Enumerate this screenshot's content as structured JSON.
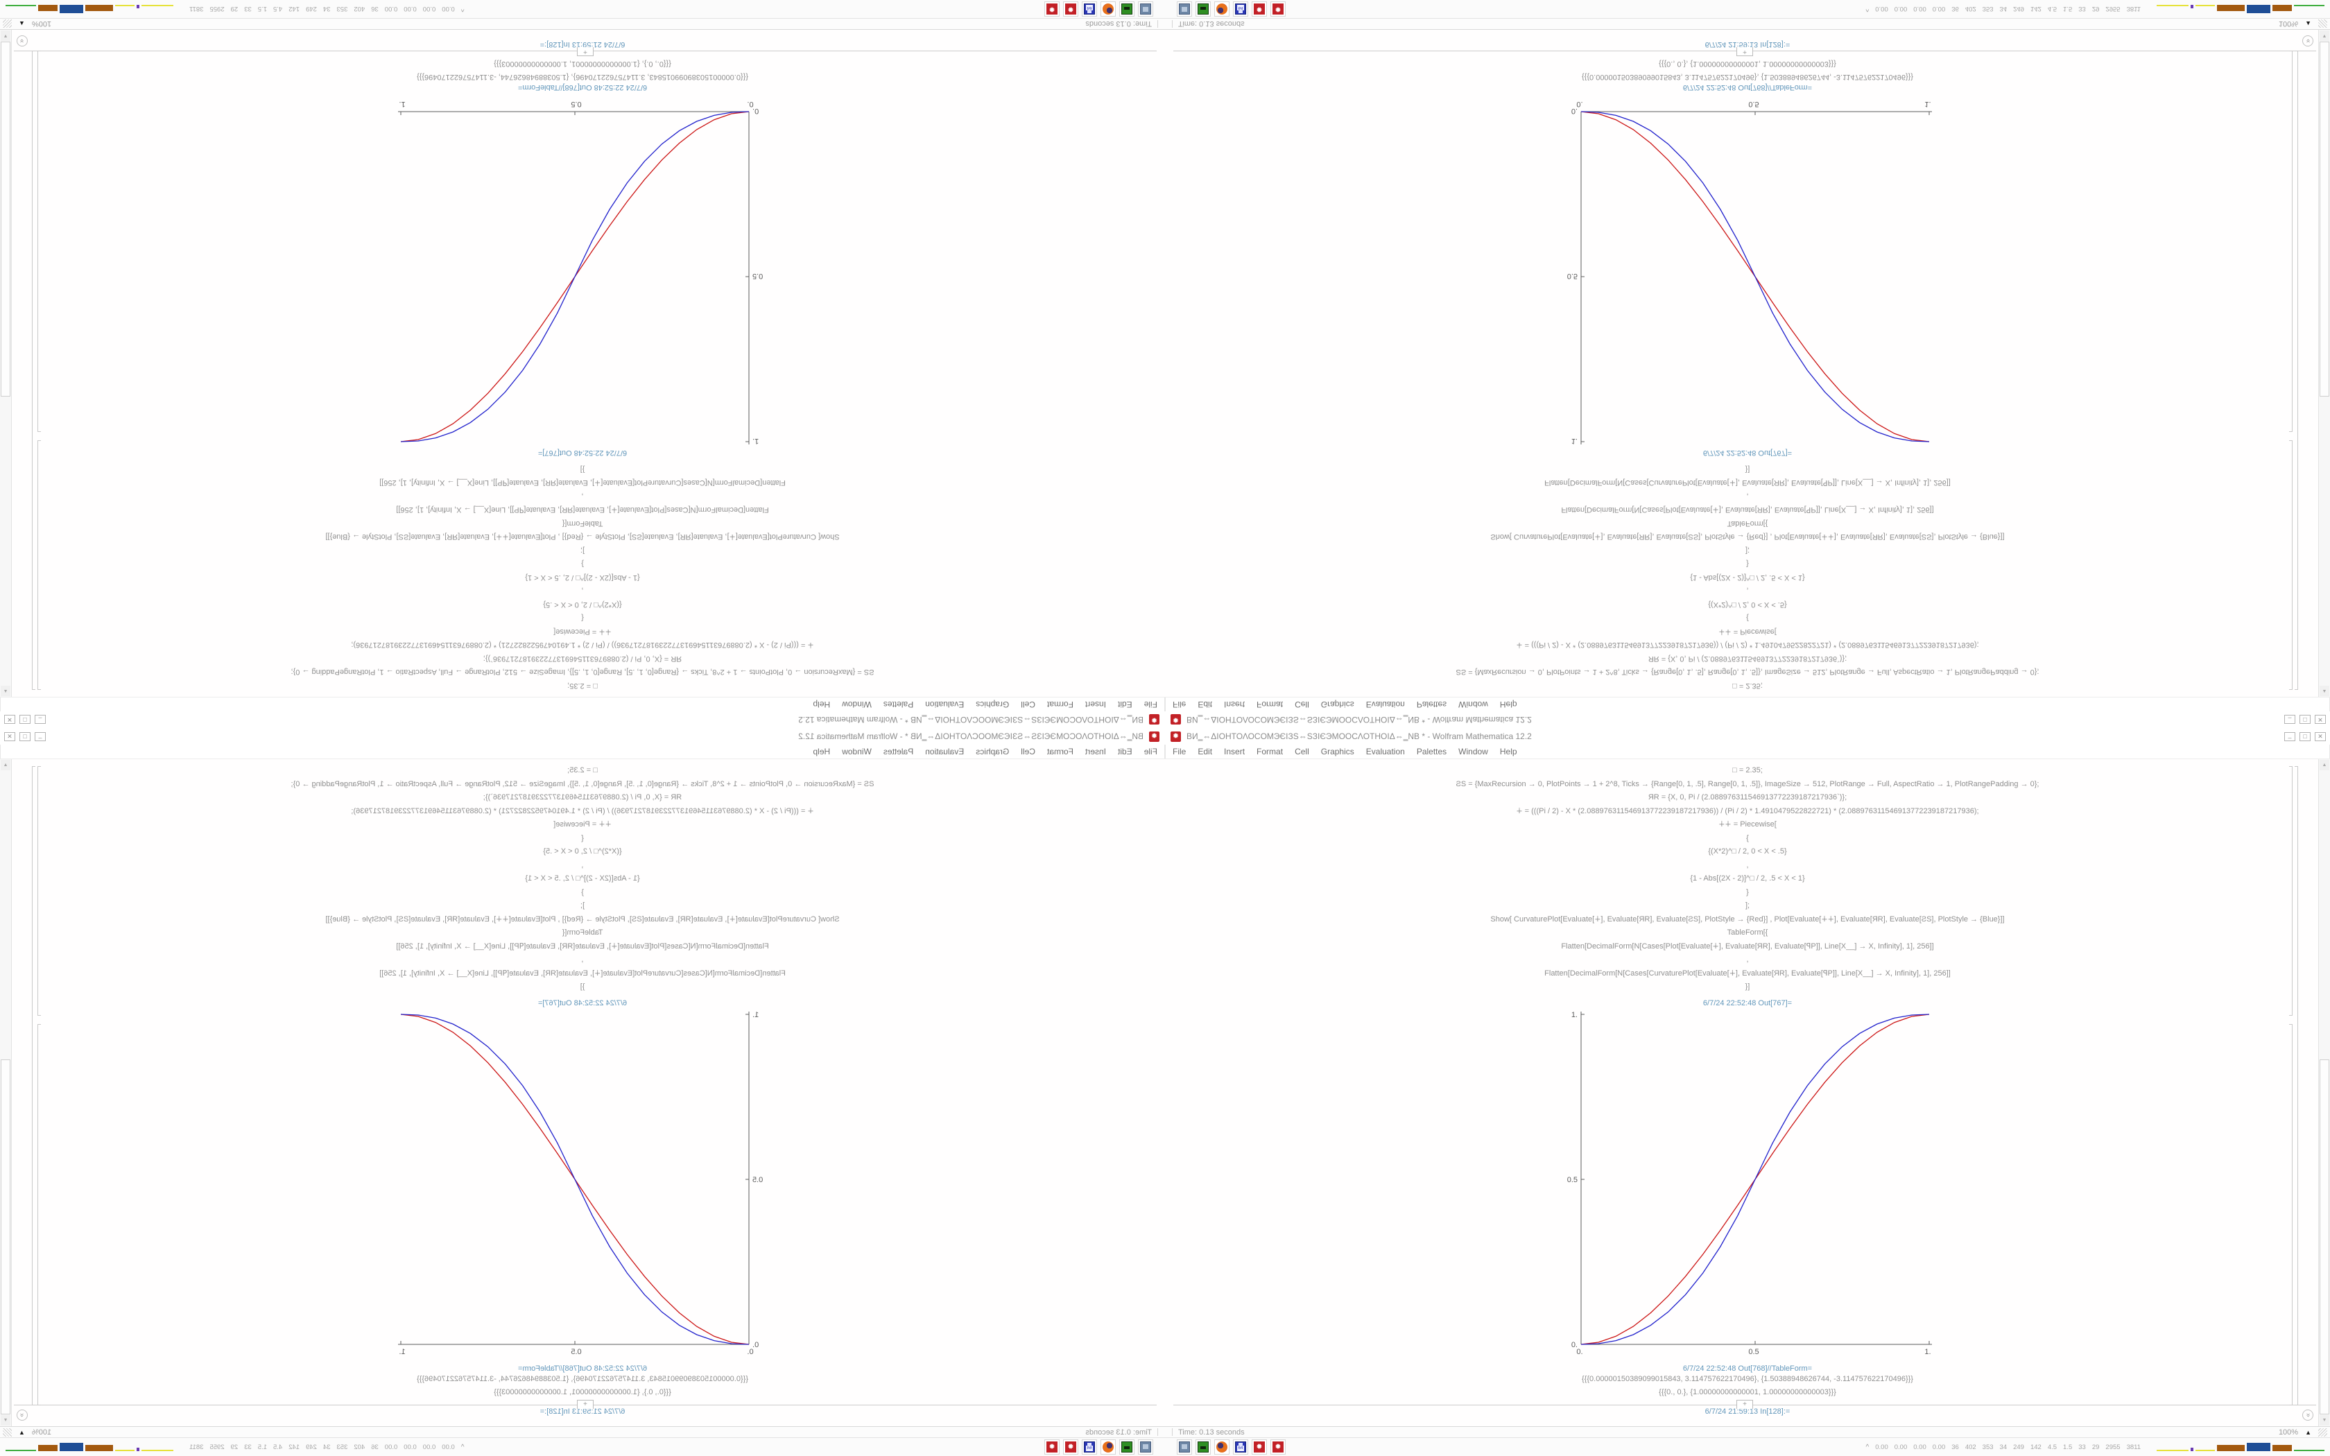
{
  "quadrants": [
    {
      "id": "top-left",
      "transform": "rotate-180"
    },
    {
      "id": "top-right",
      "transform": "flip-vertical"
    },
    {
      "id": "bottom-left",
      "transform": "flip-horizontal"
    },
    {
      "id": "bottom-right",
      "transform": "none"
    }
  ],
  "window": {
    "title": "ВИ‗⇔ΔΙΟΗΤΟΛΟCOMЭЄІЗЅ⇔ЅЗІЄЭMOOCΛΟΤΗΟΙΔ⇔‗NB * - Wolfram Mathematica 12.2",
    "buttons": {
      "minimize": "–",
      "maximize": "□",
      "close": "✕"
    },
    "menu": {
      "items": [
        "File",
        "Edit",
        "Insert",
        "Format",
        "Cell",
        "Graphics",
        "Evaluation",
        "Palettes",
        "Window",
        "Help"
      ]
    }
  },
  "notebook": {
    "code_lines": [
      "□ = 2.35;",
      "ƧS = {MaxRecursion → 0, PlotPoints → 1 + 2^8, Ticks → {Range[0, 1, .5], Range[0, 1, .5]}, ImageSize → 512, PlotRange → Full, AspectRatio → 1, PlotRangePadding → 0};",
      "ЯR = {X, 0, Pi / (2.088976311546913772239187217936`)};",
      "∔ = (((Pi / 2) - X * (2.088976311546913772239187217936)) / (Pi / 2) * 1.4910479522822721) * (2.088976311546913772239187217936);",
      "∔∔ = Piecewise[",
      "{",
      "{(X*2)^□ / 2, 0 < X < .5}",
      ",",
      "{1 - Abs[(2X - 2)]^□ / 2, .5 < X < 1}",
      "}",
      "];",
      "Show[   CurvaturePlot[Evaluate[∔], Evaluate[ЯR], Evaluate[ƧS], PlotStyle → {Red}]   ,   Plot[Evaluate[∔∔], Evaluate[ЯR], Evaluate[ƧS],  PlotStyle → {Blue}]]",
      "TableForm[{",
      "Flatten[DecimalForm[N[Cases[Plot[Evaluate[∔], Evaluate[ЯR], Evaluate[ꟼP]], Line[X__] → X, Infinity], 1], 256]]",
      ",",
      "Flatten[DecimalForm[N[Cases[CurvaturePlot[Evaluate[∔], Evaluate[ЯR], Evaluate[ꟼP]], Line[X__] → X, Infinity], 1], 256]]",
      "}]"
    ],
    "out_plot_label": "6/7/24 22:52:48 Out[767]=",
    "out_table_label": "6/7/24 22:52:48 Out[768]//TableForm=",
    "table_rows": [
      "{{{0.00000150389099015843, 3.114757622170496}, {1.50388948626744, -3.114757622170496}}}",
      "{{{0., 0.}, {1.00000000000001, 1.00000000000003}}}"
    ],
    "insert_plus": "+",
    "next_input_label": "6/7/24 21:59:13 In[128]:="
  },
  "chart_data": {
    "type": "line",
    "title": "",
    "xlabel": "",
    "ylabel": "",
    "xlim": [
      0,
      1
    ],
    "ylim": [
      0,
      1
    ],
    "grid": false,
    "legend": null,
    "note": "Two nearly overlapping S-curves from (0,0) to (1,1); red CurvaturePlot and blue Piecewise Plot",
    "xticks": [
      {
        "v": 0,
        "label": "0."
      },
      {
        "v": 0.5,
        "label": "0.5"
      },
      {
        "v": 1,
        "label": "1."
      }
    ],
    "yticks": [
      {
        "v": 0,
        "label": "0."
      },
      {
        "v": 0.5,
        "label": "0.5"
      },
      {
        "v": 1,
        "label": "1."
      }
    ],
    "x": [
      0,
      0.05,
      0.1,
      0.15,
      0.2,
      0.25,
      0.3,
      0.35,
      0.4,
      0.45,
      0.5,
      0.55,
      0.6,
      0.65,
      0.7,
      0.75,
      0.8,
      0.85,
      0.9,
      0.95,
      1
    ],
    "series": [
      {
        "name": "CurvaturePlot (Red)",
        "color": "#cc1414",
        "values": [
          0,
          0.0062,
          0.0245,
          0.0545,
          0.0955,
          0.1464,
          0.2061,
          0.273,
          0.3455,
          0.4218,
          0.5,
          0.5782,
          0.6545,
          0.727,
          0.7939,
          0.8536,
          0.9045,
          0.9455,
          0.9755,
          0.9938,
          1
        ]
      },
      {
        "name": "Plot (Blue)",
        "color": "#2020cc",
        "values": [
          0,
          0.0022,
          0.0114,
          0.0295,
          0.058,
          0.0981,
          0.1506,
          0.2162,
          0.296,
          0.3903,
          0.5,
          0.6097,
          0.704,
          0.7838,
          0.8494,
          0.9019,
          0.942,
          0.9705,
          0.9886,
          0.9978,
          1
        ]
      }
    ]
  },
  "status_bar": {
    "left": "Time: 0.13 seconds",
    "zoom": "100%"
  },
  "taskbar": {
    "icons": [
      {
        "name": "system-monitor-icon"
      },
      {
        "name": "green-device-icon"
      },
      {
        "name": "firefox-icon"
      },
      {
        "name": "floppy-64-icon"
      },
      {
        "name": "mathematica-icon"
      },
      {
        "name": "mathematica-icon-2"
      }
    ],
    "tray": {
      "expand_icon": "^",
      "values": [
        "0.00",
        "0.00",
        "0.00",
        "0.00",
        "36",
        "402",
        "353",
        "34",
        "249",
        "142",
        "4.5",
        "1.5",
        "33",
        "29",
        "2955",
        "3811"
      ],
      "sparkline_segments": [
        {
          "color": "#e6e23a",
          "w": 46,
          "h": 2
        },
        {
          "color": "#6a3ab2",
          "w": 4,
          "h": 5
        },
        {
          "color": "#e6e23a",
          "w": 28,
          "h": 2
        },
        {
          "color": "#a3590f",
          "w": 40,
          "h": 9
        },
        {
          "color": "#1f4e96",
          "w": 34,
          "h": 12
        },
        {
          "color": "#a3590f",
          "w": 28,
          "h": 9
        },
        {
          "color": "#3fae3f",
          "w": 44,
          "h": 2
        }
      ]
    }
  },
  "colors": {
    "mathematica_red": "#c22026",
    "cell_label_blue": "#6196ba",
    "code_gray": "#8f8f8f",
    "red_curve": "#cc1414",
    "blue_curve": "#2020cc"
  }
}
